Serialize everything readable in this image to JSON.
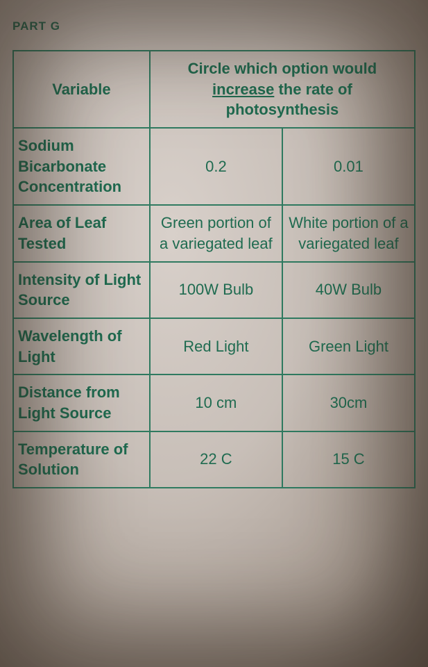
{
  "heading": "PART G",
  "table": {
    "header": {
      "variable": "Variable",
      "prompt_pre": "Circle which option would ",
      "prompt_underlined": "increase",
      "prompt_post": " the rate of photosynthesis"
    },
    "rows": [
      {
        "variable": "Sodium Bicarbonate Concentration",
        "optA": "0.2",
        "optB": "0.01"
      },
      {
        "variable": "Area of Leaf Tested",
        "optA": "Green portion of a variegated leaf",
        "optB": "White portion of a variegated leaf"
      },
      {
        "variable": "Intensity of Light Source",
        "optA": "100W Bulb",
        "optB": "40W Bulb"
      },
      {
        "variable": "Wavelength of Light",
        "optA": "Red Light",
        "optB": "Green Light"
      },
      {
        "variable": "Distance from Light Source",
        "optA": "10 cm",
        "optB": "30cm"
      },
      {
        "variable": "Temperature of Solution",
        "optA": "22 C",
        "optB": "15 C"
      }
    ],
    "columns": {
      "c1_width": "34%",
      "c2_width": "33%",
      "c3_width": "33%"
    },
    "style": {
      "border_color": "#2f7a60",
      "text_color": "#1f6b50",
      "cell_fontsize": 22,
      "header_fontsize": 22,
      "heading_fontsize": 17,
      "background_gradient": [
        "#d8d0ca",
        "#c8bfb8",
        "#a89c92",
        "#7a6e64"
      ]
    }
  }
}
